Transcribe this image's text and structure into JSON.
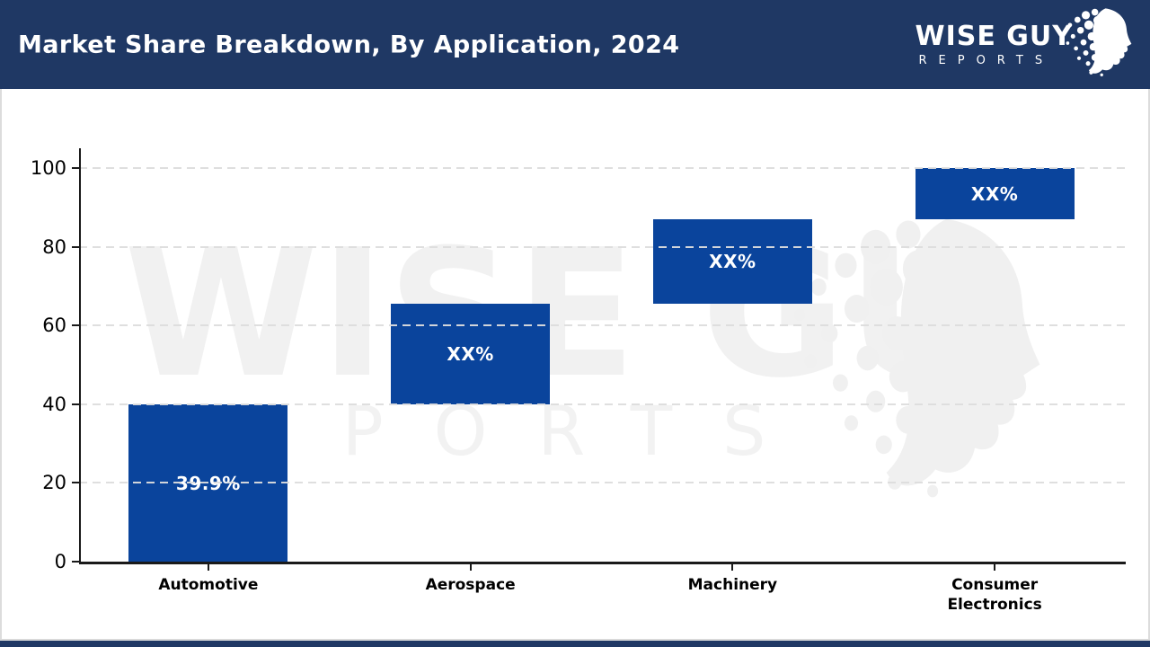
{
  "header": {
    "title": "Market Share Breakdown, By Application, 2024",
    "brand": {
      "name": "WISE GUY",
      "sub": "REPORTS"
    }
  },
  "watermark": {
    "line1": "WISE GU",
    "line2": "REPORTS"
  },
  "colors": {
    "header_bg": "#1f3864",
    "bar_blue": "#0a449c",
    "grid": "#dddddd",
    "watermark": "#f1f1f1"
  },
  "chart_data": {
    "type": "bar",
    "subtype": "waterfall",
    "title": "Market Share Breakdown, By Application, 2024",
    "categories": [
      "Automotive",
      "Aerospace",
      "Machinery",
      "Consumer Electronics"
    ],
    "series": [
      {
        "name": "Market share (%)",
        "bars": [
          {
            "category": "Automotive",
            "start": 0,
            "end": 39.9,
            "label": "39.9%"
          },
          {
            "category": "Aerospace",
            "start": 39.9,
            "end": 65.5,
            "label": "XX%"
          },
          {
            "category": "Machinery",
            "start": 65.5,
            "end": 86.9,
            "label": "XX%"
          },
          {
            "category": "Consumer Electronics",
            "start": 86.9,
            "end": 100,
            "label": "XX%"
          }
        ]
      }
    ],
    "ylim": [
      0,
      100
    ],
    "yticks": [
      0,
      20,
      40,
      60,
      80,
      100
    ],
    "grid": "horizontal-dashed",
    "legend": "none",
    "xlabel": "",
    "ylabel": ""
  }
}
